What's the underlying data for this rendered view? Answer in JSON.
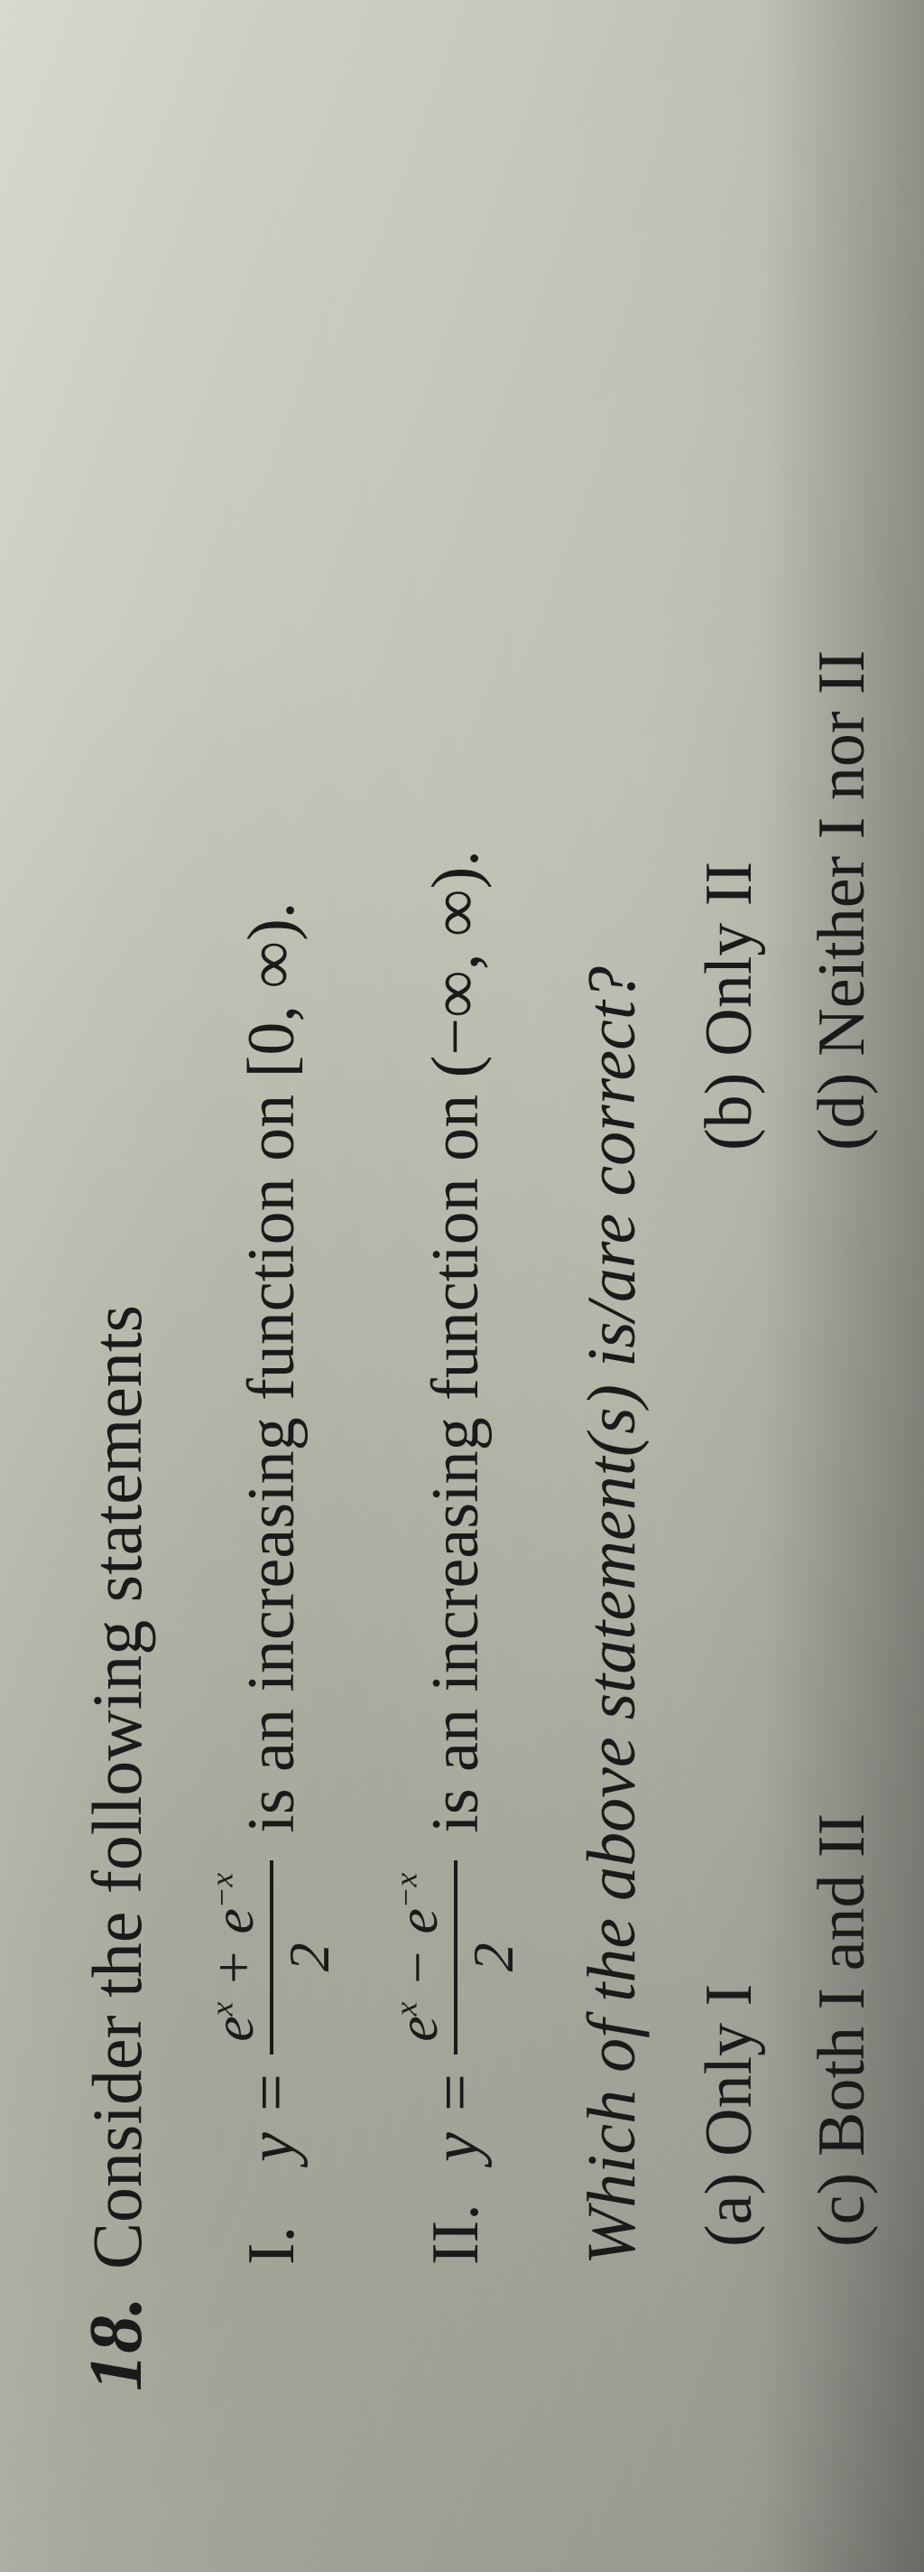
{
  "question": {
    "number": "18.",
    "prompt": "Consider the following statements",
    "statements": [
      {
        "roman": "I.",
        "lhs": "y =",
        "numerator_html": "e<span class='sup'>x</span> + e<span class='sup'>−x</span>",
        "denominator": "2",
        "after": "is an increasing function on [0, ∞)."
      },
      {
        "roman": "II.",
        "lhs": "y =",
        "numerator_html": "e<span class='sup'>x</span> − e<span class='sup'>−x</span>",
        "denominator": "2",
        "after": "is an increasing function on (−∞, ∞)."
      }
    ],
    "which": "Which of the above statement(s) is/are correct?",
    "options": [
      {
        "letter": "(a)",
        "text": "Only I"
      },
      {
        "letter": "(b)",
        "text": "Only II"
      },
      {
        "letter": "(c)",
        "text": "Both I and II"
      },
      {
        "letter": "(d)",
        "text": "Neither I nor II"
      }
    ]
  },
  "style": {
    "text_color": "#1a1a1a",
    "bg_gradient_start": "#d8d8d0",
    "bg_gradient_end": "#888880",
    "qnum_fontsize": 84,
    "body_fontsize": 74,
    "rotation_deg": -90
  }
}
